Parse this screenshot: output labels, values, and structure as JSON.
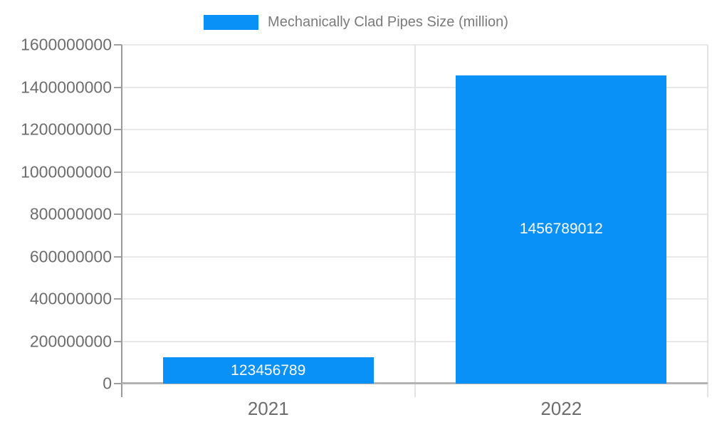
{
  "chart_data": {
    "type": "bar",
    "title": "Mechanically Clad Pipes Size (million)",
    "categories": [
      "2021",
      "2022"
    ],
    "series": [
      {
        "name": "Mechanically Clad Pipes Size (million)",
        "values": [
          123456789,
          1456789012
        ]
      }
    ],
    "value_labels": [
      "123456789",
      "1456789012"
    ],
    "xlabel": "",
    "ylabel": "",
    "ylim": [
      0,
      1600000000
    ],
    "y_ticks": [
      0,
      200000000,
      400000000,
      600000000,
      800000000,
      1000000000,
      1200000000,
      1400000000,
      1600000000
    ],
    "grid": true,
    "legend_position": "top-center",
    "bar_band_fraction": 0.72,
    "colors": {
      "bar": "#0a91f7",
      "grid": "#e9e9e9",
      "divider": "#e3e3e3",
      "axis": "#b3b3b3",
      "yaxis": "#9a9a9a",
      "tick": "#9e9e9e",
      "label": "#6d6d6d",
      "title": "#7a7a7a",
      "value_label": "#ffffff",
      "background": "#ffffff"
    }
  }
}
